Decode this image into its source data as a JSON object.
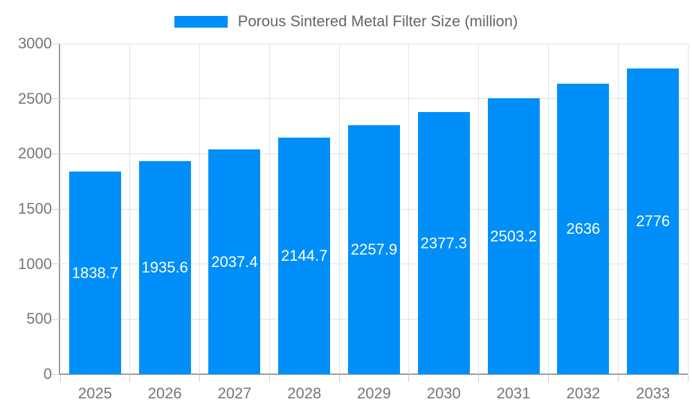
{
  "chart_data": {
    "type": "bar",
    "title": "Porous Sintered Metal Filter Size (million)",
    "categories": [
      "2025",
      "2026",
      "2027",
      "2028",
      "2029",
      "2030",
      "2031",
      "2032",
      "2033"
    ],
    "values": [
      1838.7,
      1935.6,
      2037.4,
      2144.7,
      2257.9,
      2377.3,
      2503.2,
      2636,
      2776
    ],
    "value_labels": [
      "1838.7",
      "1935.6",
      "2037.4",
      "2144.7",
      "2257.9",
      "2377.3",
      "2503.2",
      "2636",
      "2776"
    ],
    "xlabel": "",
    "ylabel": "",
    "ylim": [
      0,
      3000
    ],
    "ytick_step": 500,
    "yticks": [
      0,
      500,
      1000,
      1500,
      2000,
      2500,
      3000
    ],
    "grid": true,
    "legend_position": "top",
    "value_labels_position": "inside-center"
  },
  "colors": {
    "bar": "#008FF8",
    "grid": "#e2e2e2",
    "tick": "#cccccc",
    "axis": "#9a9a9a",
    "axis_text": "#757575",
    "legend_text": "#666666",
    "value_label_text": "#ffffff",
    "background": "#ffffff"
  }
}
